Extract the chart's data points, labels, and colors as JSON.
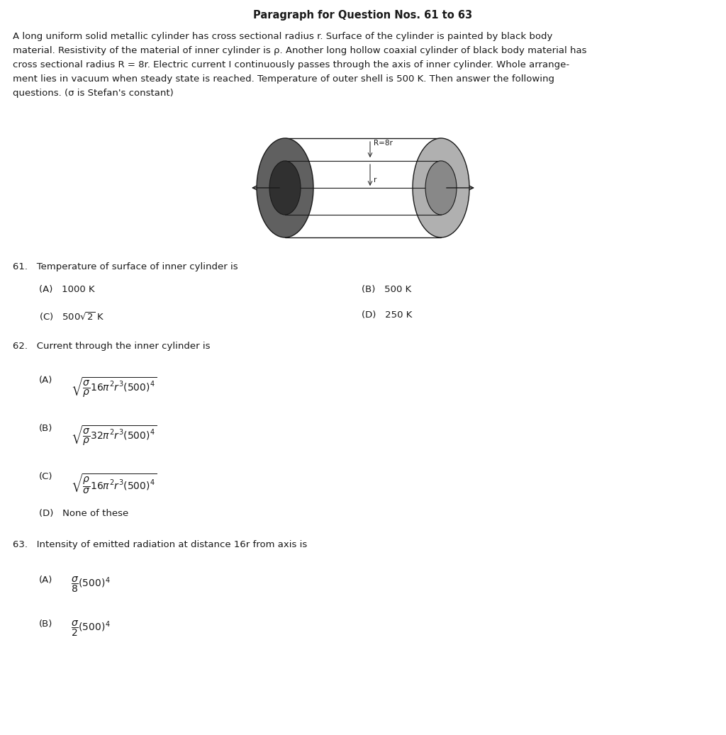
{
  "title": "Paragraph for Question Nos. 61 to 63",
  "para_line1": "A long uniform solid metallic cylinder has cross sectional radius r. Surface of the cylinder is painted by black body",
  "para_line2": "material. Resistivity of the material of inner cylinder is ρ. Another long hollow coaxial cylinder of black body material has",
  "para_line3": "cross sectional radius R = 8r. Electric current I continuously passes through the axis of inner cylinder. Whole arrange-",
  "para_line4": "ment lies in vacuum when steady state is reached. Temperature of outer shell is 500 K. Then answer the following",
  "para_line5": "questions. (σ is Stefan's constant)",
  "q61_text": "61.   Temperature of surface of inner cylinder is",
  "q61_A": "(A)   1000 K",
  "q61_B": "(B)   500 K",
  "q61_C_pre": "(C)   500",
  "q61_C_post": "2 K",
  "q61_D": "(D)   250 K",
  "q62_text": "62.   Current through the inner cylinder is",
  "q62_D_text": "(D)   None of these",
  "q63_text": "63.   Intensity of emitted radiation at distance 16r from axis is",
  "background_color": "#ffffff",
  "text_color": "#1a1a1a",
  "title_fontsize": 10.5,
  "body_fontsize": 9.5,
  "option_fontsize": 9.5,
  "math_fontsize": 10
}
